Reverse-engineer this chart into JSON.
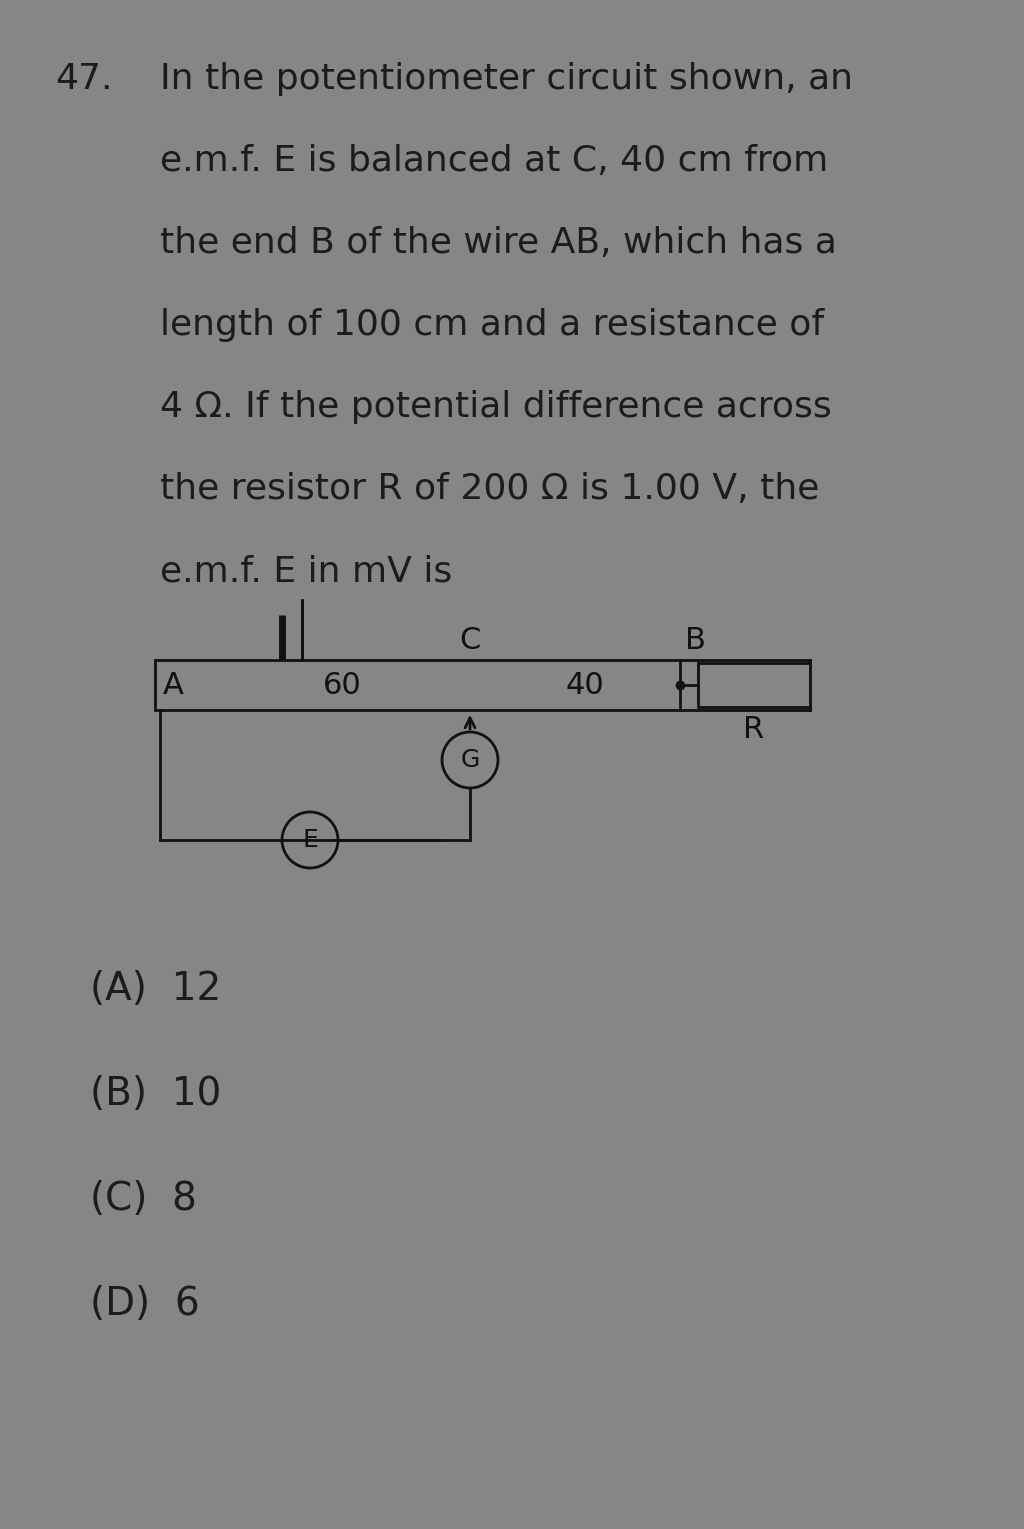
{
  "bg_color": "#868686",
  "text_color": "#1c1c1c",
  "question_number": "47.",
  "q_lines": [
    "In the potentiometer circuit shown, an",
    "e.m.f. E is balanced at C, 40 cm from",
    "the end B of the wire AB, which has a",
    "length of 100 cm and a resistance of",
    "4 Ω. If the potential difference across",
    "the resistor R of 200 Ω is 1.00 V, the",
    "e.m.f. E in mV is"
  ],
  "options": [
    "(A)  12",
    "(B)  10",
    "(C)  8",
    "(D)  6"
  ],
  "wire_color": "#111111",
  "label_A": "A",
  "label_60": "60",
  "label_C": "C",
  "label_40": "40",
  "label_B": "B",
  "label_R": "R",
  "label_E": "E",
  "label_G": "G"
}
